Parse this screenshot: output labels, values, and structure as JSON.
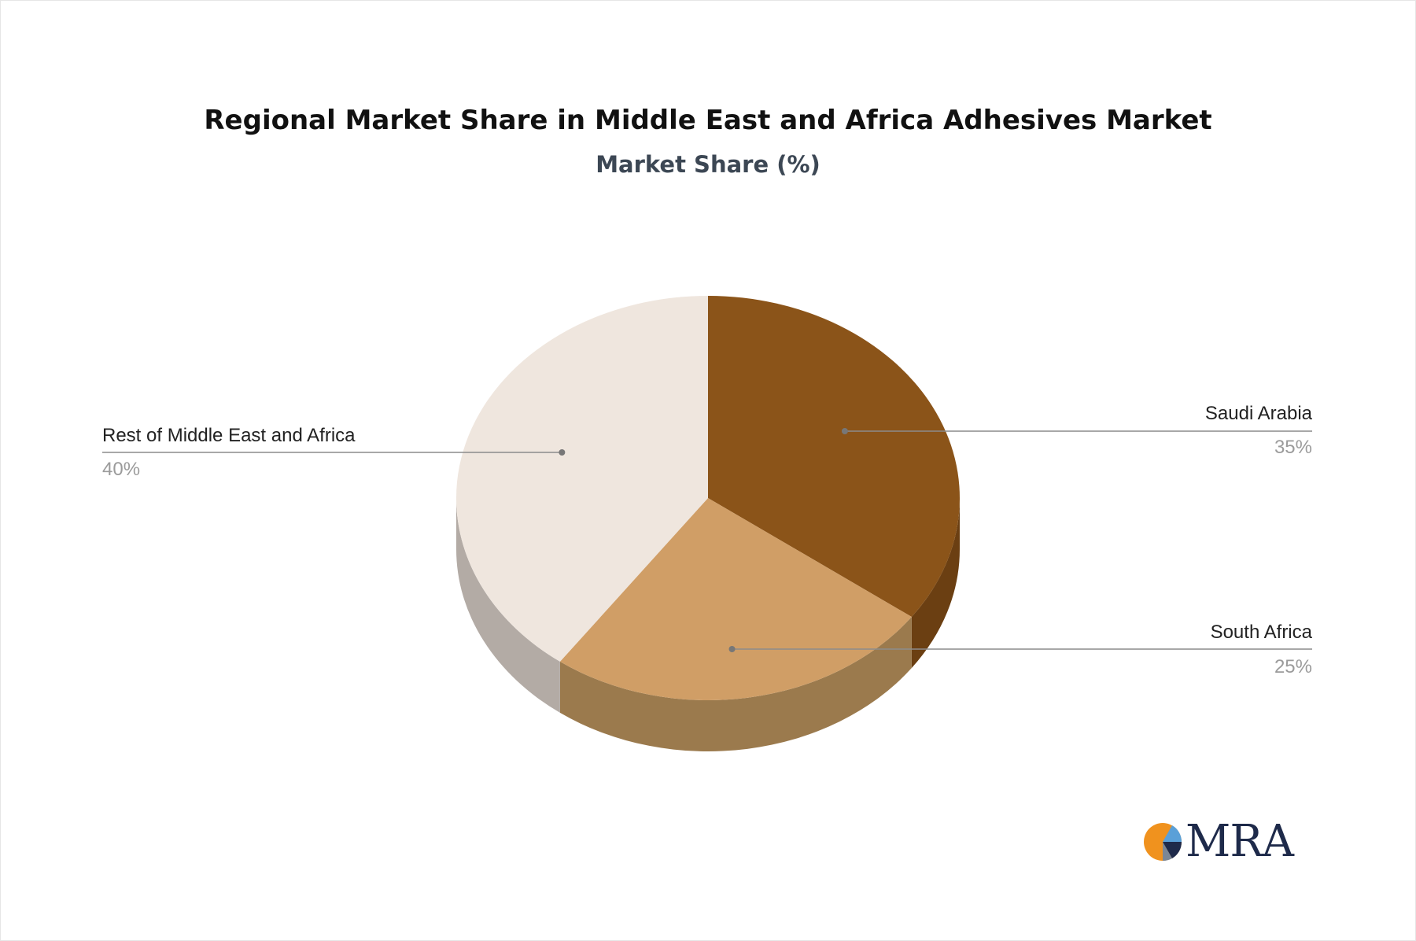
{
  "header": {
    "title": "Regional Market Share in Middle East and Africa Adhesives Market",
    "subtitle": "Market Share (%)"
  },
  "chart_data": {
    "type": "pie",
    "style": "3d",
    "title": "Regional Market Share in Middle East and Africa Adhesives Market",
    "subtitle": "Market Share (%)",
    "slices": [
      {
        "label": "Saudi Arabia",
        "value": 35,
        "value_label": "35%",
        "color": "#8b5419",
        "side_color": "#6b3f12"
      },
      {
        "label": "South Africa",
        "value": 25,
        "value_label": "25%",
        "color": "#d09e66",
        "side_color": "#9b7a4d"
      },
      {
        "label": "Rest of Middle East and Africa",
        "value": 40,
        "value_label": "40%",
        "color": "#efe6de",
        "side_color": "#b3aba5"
      }
    ]
  },
  "logo": {
    "text": "MRA",
    "colors": {
      "orange": "#f0921e",
      "navy": "#1e2a4a",
      "blue": "#5aa0d8"
    }
  }
}
